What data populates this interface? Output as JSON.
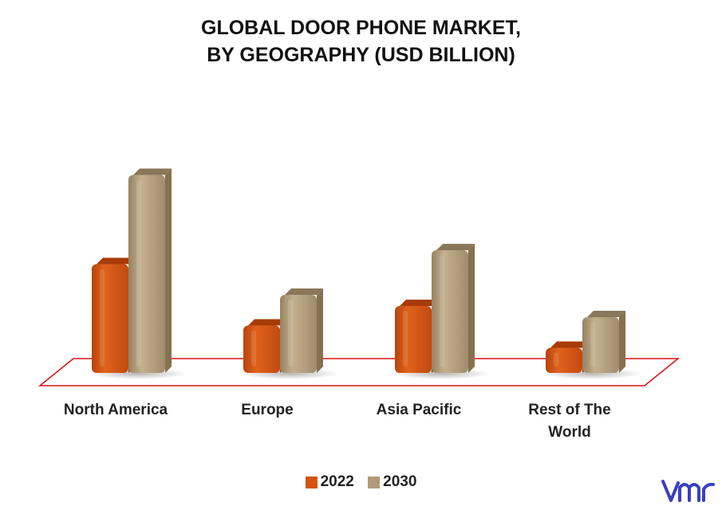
{
  "chart_data": {
    "type": "bar",
    "title_lines": [
      "GLOBAL DOOR PHONE MARKET,",
      "BY GEOGRAPHY (USD BILLION)"
    ],
    "categories": [
      [
        "North America"
      ],
      [
        "Europe"
      ],
      [
        "Asia Pacific"
      ],
      [
        "Rest of The",
        "World"
      ]
    ],
    "series": [
      {
        "name": "2022",
        "color": "#D35411",
        "values": [
          3.9,
          1.7,
          2.4,
          0.9
        ]
      },
      {
        "name": "2030",
        "color": "#B09B7C",
        "values": [
          7.1,
          2.8,
          4.4,
          2.0
        ]
      }
    ],
    "ylim": [
      0,
      8
    ],
    "xlabel": "",
    "ylabel": "",
    "grid": false,
    "legend_position": "bottom-center",
    "floor_outline_color": "#E01010"
  },
  "logo": {
    "name": "vmr-logo",
    "color": "#3B3FC0"
  }
}
